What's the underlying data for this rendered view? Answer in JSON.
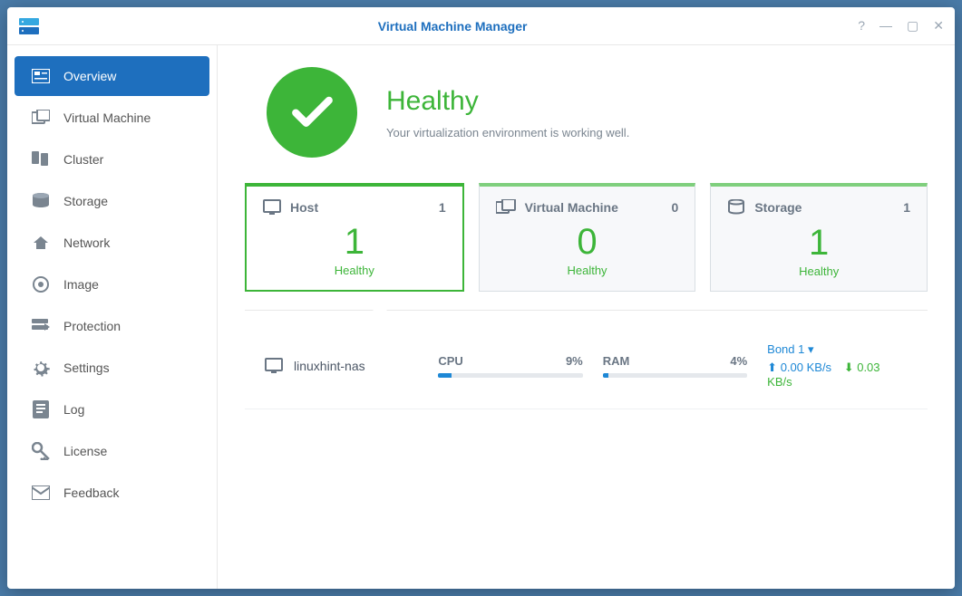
{
  "title": "Virtual Machine Manager",
  "colors": {
    "accent": "#1e6fbe",
    "green": "#3db539",
    "green_light": "#7fcf7d",
    "bar": "#1e88d6",
    "text_muted": "#6a7684"
  },
  "nav": [
    {
      "label": "Overview",
      "active": true
    },
    {
      "label": "Virtual Machine"
    },
    {
      "label": "Cluster"
    },
    {
      "label": "Storage"
    },
    {
      "label": "Network"
    },
    {
      "label": "Image"
    },
    {
      "label": "Protection"
    },
    {
      "label": "Settings"
    },
    {
      "label": "Log"
    },
    {
      "label": "License"
    },
    {
      "label": "Feedback"
    }
  ],
  "health": {
    "title": "Healthy",
    "subtitle": "Your virtualization environment is working well."
  },
  "cards": {
    "host": {
      "label": "Host",
      "count": "1",
      "value": "1",
      "sub": "Healthy"
    },
    "vm": {
      "label": "Virtual Machine",
      "count": "0",
      "value": "0",
      "sub": "Healthy"
    },
    "storage": {
      "label": "Storage",
      "count": "1",
      "value": "1",
      "sub": "Healthy"
    }
  },
  "host": {
    "name": "linuxhint-nas",
    "cpu": {
      "label": "CPU",
      "value": "9%",
      "pct": 9
    },
    "ram": {
      "label": "RAM",
      "value": "4%",
      "pct": 4
    },
    "iface": {
      "name": "Bond 1",
      "up": "0.00 KB/s",
      "down": "0.03 KB/s"
    }
  }
}
